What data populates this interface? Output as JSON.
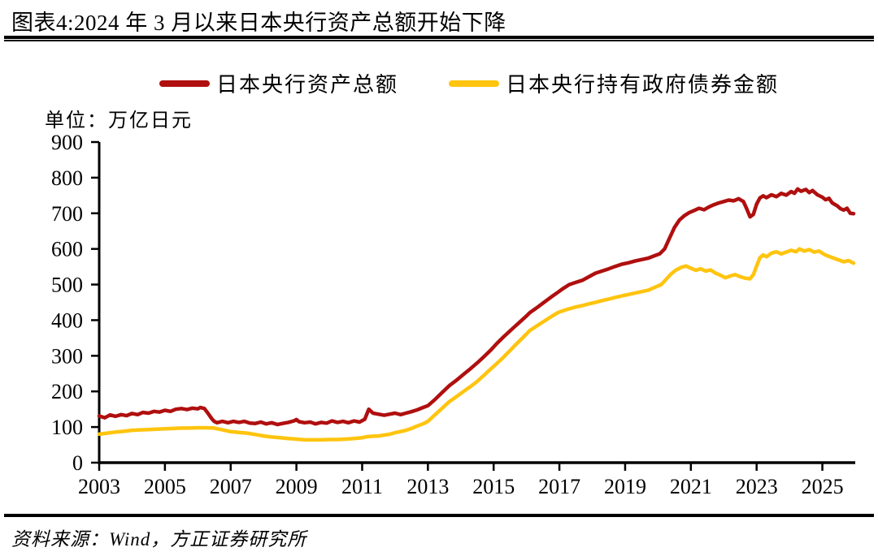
{
  "figure": {
    "title": "图表4:2024 年 3 月以来日本央行资产总额开始下降",
    "unit_label": "单位：万亿日元",
    "source": "资料来源：Wind，方正证券研究所"
  },
  "legend": {
    "items": [
      {
        "label": "日本央行资产总额",
        "color": "#B00F0F"
      },
      {
        "label": "日本央行持有政府债券金额",
        "color": "#FFC40F"
      }
    ]
  },
  "colors": {
    "series_red": "#B00F0F",
    "series_yellow": "#FFC40F",
    "axis": "#000000",
    "background": "#FFFFFF"
  },
  "chart_data": {
    "type": "line",
    "title": "图表4:2024 年 3 月以来日本央行资产总额开始下降",
    "xlabel": "",
    "ylabel": "万亿日元",
    "xlim": [
      2003,
      2026
    ],
    "ylim": [
      0,
      900
    ],
    "x_ticks": [
      2003,
      2005,
      2007,
      2009,
      2011,
      2013,
      2015,
      2017,
      2019,
      2021,
      2023,
      2025
    ],
    "y_ticks": [
      0,
      100,
      200,
      300,
      400,
      500,
      600,
      700,
      800,
      900
    ],
    "grid": false,
    "legend_position": "top",
    "series": [
      {
        "name": "日本央行资产总额",
        "color": "#B00F0F",
        "points": [
          [
            2003.0,
            131
          ],
          [
            2003.17,
            126
          ],
          [
            2003.33,
            134
          ],
          [
            2003.5,
            130
          ],
          [
            2003.67,
            135
          ],
          [
            2003.83,
            132
          ],
          [
            2004.0,
            138
          ],
          [
            2004.17,
            135
          ],
          [
            2004.33,
            141
          ],
          [
            2004.5,
            139
          ],
          [
            2004.67,
            144
          ],
          [
            2004.83,
            142
          ],
          [
            2005.0,
            147
          ],
          [
            2005.17,
            144
          ],
          [
            2005.33,
            150
          ],
          [
            2005.5,
            152
          ],
          [
            2005.67,
            149
          ],
          [
            2005.83,
            153
          ],
          [
            2006.0,
            151
          ],
          [
            2006.08,
            155
          ],
          [
            2006.2,
            152
          ],
          [
            2006.3,
            140
          ],
          [
            2006.42,
            124
          ],
          [
            2006.5,
            116
          ],
          [
            2006.58,
            112
          ],
          [
            2006.75,
            116
          ],
          [
            2006.92,
            112
          ],
          [
            2007.08,
            116
          ],
          [
            2007.25,
            113
          ],
          [
            2007.42,
            116
          ],
          [
            2007.58,
            111
          ],
          [
            2007.75,
            110
          ],
          [
            2007.92,
            114
          ],
          [
            2008.08,
            109
          ],
          [
            2008.25,
            112
          ],
          [
            2008.42,
            107
          ],
          [
            2008.58,
            110
          ],
          [
            2008.75,
            113
          ],
          [
            2008.92,
            117
          ],
          [
            2009.0,
            121
          ],
          [
            2009.08,
            115
          ],
          [
            2009.25,
            112
          ],
          [
            2009.42,
            114
          ],
          [
            2009.58,
            109
          ],
          [
            2009.75,
            113
          ],
          [
            2009.92,
            111
          ],
          [
            2010.08,
            117
          ],
          [
            2010.25,
            113
          ],
          [
            2010.42,
            116
          ],
          [
            2010.58,
            112
          ],
          [
            2010.75,
            117
          ],
          [
            2010.92,
            114
          ],
          [
            2011.08,
            122
          ],
          [
            2011.2,
            150
          ],
          [
            2011.33,
            139
          ],
          [
            2011.5,
            136
          ],
          [
            2011.67,
            133
          ],
          [
            2011.83,
            136
          ],
          [
            2012.0,
            139
          ],
          [
            2012.17,
            135
          ],
          [
            2012.33,
            139
          ],
          [
            2012.5,
            143
          ],
          [
            2012.67,
            148
          ],
          [
            2012.83,
            154
          ],
          [
            2013.0,
            160
          ],
          [
            2013.2,
            176
          ],
          [
            2013.4,
            194
          ],
          [
            2013.65,
            216
          ],
          [
            2013.85,
            230
          ],
          [
            2014.1,
            249
          ],
          [
            2014.3,
            264
          ],
          [
            2014.5,
            280
          ],
          [
            2014.7,
            297
          ],
          [
            2014.9,
            315
          ],
          [
            2015.1,
            335
          ],
          [
            2015.3,
            353
          ],
          [
            2015.5,
            370
          ],
          [
            2015.75,
            391
          ],
          [
            2016.0,
            412
          ],
          [
            2016.1,
            421
          ],
          [
            2016.3,
            434
          ],
          [
            2016.5,
            448
          ],
          [
            2016.75,
            465
          ],
          [
            2016.95,
            478
          ],
          [
            2017.1,
            488
          ],
          [
            2017.3,
            500
          ],
          [
            2017.5,
            506
          ],
          [
            2017.7,
            512
          ],
          [
            2017.9,
            522
          ],
          [
            2018.1,
            532
          ],
          [
            2018.3,
            538
          ],
          [
            2018.5,
            544
          ],
          [
            2018.7,
            551
          ],
          [
            2018.9,
            557
          ],
          [
            2019.1,
            561
          ],
          [
            2019.3,
            566
          ],
          [
            2019.5,
            570
          ],
          [
            2019.7,
            574
          ],
          [
            2019.9,
            581
          ],
          [
            2020.05,
            586
          ],
          [
            2020.2,
            600
          ],
          [
            2020.35,
            630
          ],
          [
            2020.5,
            660
          ],
          [
            2020.65,
            681
          ],
          [
            2020.8,
            693
          ],
          [
            2020.95,
            702
          ],
          [
            2021.1,
            708
          ],
          [
            2021.25,
            714
          ],
          [
            2021.4,
            710
          ],
          [
            2021.55,
            718
          ],
          [
            2021.7,
            724
          ],
          [
            2021.85,
            729
          ],
          [
            2022.0,
            733
          ],
          [
            2022.15,
            737
          ],
          [
            2022.3,
            735
          ],
          [
            2022.45,
            741
          ],
          [
            2022.6,
            733
          ],
          [
            2022.7,
            712
          ],
          [
            2022.8,
            690
          ],
          [
            2022.9,
            697
          ],
          [
            2023.0,
            726
          ],
          [
            2023.1,
            743
          ],
          [
            2023.2,
            749
          ],
          [
            2023.3,
            744
          ],
          [
            2023.45,
            752
          ],
          [
            2023.6,
            747
          ],
          [
            2023.75,
            756
          ],
          [
            2023.9,
            751
          ],
          [
            2024.05,
            761
          ],
          [
            2024.15,
            756
          ],
          [
            2024.25,
            768
          ],
          [
            2024.35,
            762
          ],
          [
            2024.5,
            767
          ],
          [
            2024.6,
            758
          ],
          [
            2024.7,
            764
          ],
          [
            2024.85,
            752
          ],
          [
            2025.0,
            745
          ],
          [
            2025.1,
            738
          ],
          [
            2025.2,
            742
          ],
          [
            2025.3,
            729
          ],
          [
            2025.45,
            721
          ],
          [
            2025.55,
            713
          ],
          [
            2025.65,
            709
          ],
          [
            2025.75,
            714
          ],
          [
            2025.85,
            700
          ],
          [
            2025.95,
            699
          ]
        ]
      },
      {
        "name": "日本央行持有政府债券金额",
        "color": "#FFC40F",
        "points": [
          [
            2003.0,
            80
          ],
          [
            2003.25,
            83
          ],
          [
            2003.5,
            86
          ],
          [
            2003.75,
            88
          ],
          [
            2004.0,
            91
          ],
          [
            2004.25,
            92
          ],
          [
            2004.5,
            93
          ],
          [
            2004.75,
            94
          ],
          [
            2005.0,
            95
          ],
          [
            2005.25,
            96
          ],
          [
            2005.5,
            97
          ],
          [
            2005.75,
            97
          ],
          [
            2006.0,
            98
          ],
          [
            2006.25,
            98
          ],
          [
            2006.5,
            97
          ],
          [
            2006.75,
            92
          ],
          [
            2007.0,
            87
          ],
          [
            2007.25,
            85
          ],
          [
            2007.5,
            83
          ],
          [
            2007.75,
            79
          ],
          [
            2008.0,
            75
          ],
          [
            2008.25,
            72
          ],
          [
            2008.5,
            70
          ],
          [
            2008.75,
            68
          ],
          [
            2009.0,
            66
          ],
          [
            2009.25,
            64
          ],
          [
            2009.5,
            64
          ],
          [
            2009.75,
            64
          ],
          [
            2010.0,
            65
          ],
          [
            2010.25,
            65
          ],
          [
            2010.5,
            66
          ],
          [
            2010.75,
            68
          ],
          [
            2011.0,
            70
          ],
          [
            2011.15,
            73
          ],
          [
            2011.3,
            74
          ],
          [
            2011.5,
            75
          ],
          [
            2011.7,
            78
          ],
          [
            2011.85,
            80
          ],
          [
            2012.0,
            84
          ],
          [
            2012.15,
            87
          ],
          [
            2012.3,
            90
          ],
          [
            2012.5,
            96
          ],
          [
            2012.65,
            102
          ],
          [
            2012.85,
            109
          ],
          [
            2013.0,
            116
          ],
          [
            2013.2,
            133
          ],
          [
            2013.4,
            150
          ],
          [
            2013.65,
            171
          ],
          [
            2013.85,
            184
          ],
          [
            2014.1,
            201
          ],
          [
            2014.3,
            214
          ],
          [
            2014.5,
            228
          ],
          [
            2014.7,
            245
          ],
          [
            2014.9,
            262
          ],
          [
            2015.1,
            279
          ],
          [
            2015.3,
            296
          ],
          [
            2015.5,
            315
          ],
          [
            2015.7,
            334
          ],
          [
            2015.9,
            352
          ],
          [
            2016.1,
            371
          ],
          [
            2016.3,
            383
          ],
          [
            2016.5,
            395
          ],
          [
            2016.7,
            407
          ],
          [
            2016.95,
            421
          ],
          [
            2017.1,
            426
          ],
          [
            2017.3,
            432
          ],
          [
            2017.5,
            437
          ],
          [
            2017.7,
            441
          ],
          [
            2017.9,
            446
          ],
          [
            2018.1,
            450
          ],
          [
            2018.3,
            455
          ],
          [
            2018.5,
            459
          ],
          [
            2018.7,
            464
          ],
          [
            2018.9,
            468
          ],
          [
            2019.1,
            472
          ],
          [
            2019.3,
            476
          ],
          [
            2019.5,
            480
          ],
          [
            2019.7,
            484
          ],
          [
            2019.9,
            492
          ],
          [
            2020.1,
            500
          ],
          [
            2020.25,
            515
          ],
          [
            2020.4,
            530
          ],
          [
            2020.55,
            541
          ],
          [
            2020.7,
            548
          ],
          [
            2020.85,
            552
          ],
          [
            2021.0,
            546
          ],
          [
            2021.15,
            540
          ],
          [
            2021.3,
            544
          ],
          [
            2021.45,
            538
          ],
          [
            2021.6,
            541
          ],
          [
            2021.75,
            532
          ],
          [
            2021.9,
            526
          ],
          [
            2022.05,
            519
          ],
          [
            2022.2,
            524
          ],
          [
            2022.35,
            528
          ],
          [
            2022.5,
            522
          ],
          [
            2022.65,
            518
          ],
          [
            2022.8,
            516
          ],
          [
            2022.9,
            528
          ],
          [
            2023.0,
            552
          ],
          [
            2023.1,
            575
          ],
          [
            2023.2,
            583
          ],
          [
            2023.3,
            578
          ],
          [
            2023.45,
            588
          ],
          [
            2023.6,
            592
          ],
          [
            2023.75,
            586
          ],
          [
            2023.9,
            591
          ],
          [
            2024.05,
            596
          ],
          [
            2024.2,
            592
          ],
          [
            2024.3,
            600
          ],
          [
            2024.45,
            594
          ],
          [
            2024.6,
            598
          ],
          [
            2024.75,
            591
          ],
          [
            2024.9,
            594
          ],
          [
            2025.05,
            585
          ],
          [
            2025.2,
            579
          ],
          [
            2025.35,
            574
          ],
          [
            2025.5,
            569
          ],
          [
            2025.65,
            564
          ],
          [
            2025.8,
            567
          ],
          [
            2025.95,
            560
          ]
        ]
      }
    ]
  }
}
